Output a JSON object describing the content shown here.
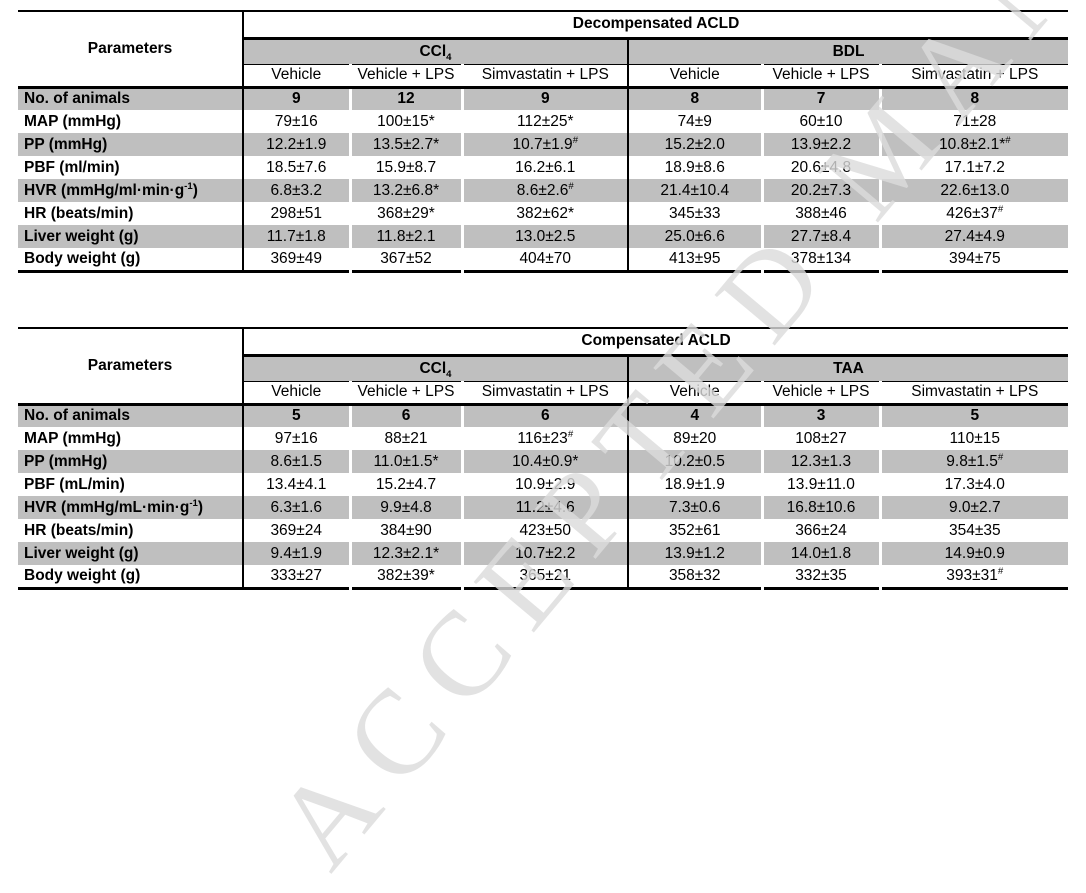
{
  "watermark": "ACCEPTED MANUSCRIPT",
  "colors": {
    "row_shade": "#bfbfbf",
    "border": "#000000",
    "page_background": "#ffffff"
  },
  "tables": [
    {
      "title": "Decompensated ACLD",
      "params_label": "Parameters",
      "groups": [
        {
          "label": [
            "CCl",
            {
              "sub": "4"
            }
          ],
          "columns": [
            "Vehicle",
            "Vehicle + LPS",
            "Simvastatin + LPS"
          ]
        },
        {
          "label": [
            "BDL"
          ],
          "columns": [
            "Vehicle",
            "Vehicle + LPS",
            "Simvastatin + LPS"
          ]
        }
      ],
      "rows": [
        {
          "param": [
            "No. of animals"
          ],
          "bold": true,
          "shaded": true,
          "values": [
            "9",
            "12",
            "9",
            "8",
            "7",
            "8"
          ]
        },
        {
          "param": [
            "MAP (mmHg)"
          ],
          "bold": false,
          "shaded": false,
          "values": [
            "79±16",
            "100±15*",
            "112±25*",
            "74±9",
            "60±10",
            "71±28"
          ]
        },
        {
          "param": [
            "PP (mmHg)"
          ],
          "bold": false,
          "shaded": true,
          "values": [
            "12.2±1.9",
            "13.5±2.7*",
            "10.7±1.9#",
            "15.2±2.0",
            "13.9±2.2",
            "10.8±2.1*#"
          ]
        },
        {
          "param": [
            "PBF (ml/min)"
          ],
          "bold": false,
          "shaded": false,
          "values": [
            "18.5±7.6",
            "15.9±8.7",
            "16.2±6.1",
            "18.9±8.6",
            "20.6±4.8",
            "17.1±7.2"
          ]
        },
        {
          "param": [
            "HVR (mmHg/ml·min·g",
            {
              "sup": "-1"
            },
            ")"
          ],
          "bold": false,
          "shaded": true,
          "values": [
            "6.8±3.2",
            "13.2±6.8*",
            "8.6±2.6#",
            "21.4±10.4",
            "20.2±7.3",
            "22.6±13.0"
          ]
        },
        {
          "param": [
            "HR (beats/min)"
          ],
          "bold": false,
          "shaded": false,
          "values": [
            "298±51",
            "368±29*",
            "382±62*",
            "345±33",
            "388±46",
            "426±37#"
          ]
        },
        {
          "param": [
            "Liver weight (g)"
          ],
          "bold": false,
          "shaded": true,
          "values": [
            "11.7±1.8",
            "11.8±2.1",
            "13.0±2.5",
            "25.0±6.6",
            "27.7±8.4",
            "27.4±4.9"
          ]
        },
        {
          "param": [
            "Body weight (g)"
          ],
          "bold": false,
          "shaded": false,
          "values": [
            "369±49",
            "367±52",
            "404±70",
            "413±95",
            "378±134",
            "394±75"
          ]
        }
      ]
    },
    {
      "title": "Compensated ACLD",
      "params_label": "Parameters",
      "groups": [
        {
          "label": [
            "CCl",
            {
              "sub": "4"
            }
          ],
          "columns": [
            "Vehicle",
            "Vehicle + LPS",
            "Simvastatin + LPS"
          ]
        },
        {
          "label": [
            "TAA"
          ],
          "columns": [
            "Vehicle",
            "Vehicle + LPS",
            "Simvastatin + LPS"
          ]
        }
      ],
      "rows": [
        {
          "param": [
            "No. of animals"
          ],
          "bold": true,
          "shaded": true,
          "values": [
            "5",
            "6",
            "6",
            "4",
            "3",
            "5"
          ]
        },
        {
          "param": [
            "MAP (mmHg)"
          ],
          "bold": false,
          "shaded": false,
          "values": [
            "97±16",
            "88±21",
            "116±23#",
            "89±20",
            "108±27",
            "110±15"
          ]
        },
        {
          "param": [
            "PP (mmHg)"
          ],
          "bold": false,
          "shaded": true,
          "values": [
            "8.6±1.5",
            "11.0±1.5*",
            "10.4±0.9*",
            "10.2±0.5",
            "12.3±1.3",
            "9.8±1.5#"
          ]
        },
        {
          "param": [
            "PBF (mL/min)"
          ],
          "bold": false,
          "shaded": false,
          "values": [
            "13.4±4.1",
            "15.2±4.7",
            "10.9±2.9",
            "18.9±1.9",
            "13.9±11.0",
            "17.3±4.0"
          ]
        },
        {
          "param": [
            "HVR (mmHg/mL·min·g",
            {
              "sup": "-1"
            },
            ")"
          ],
          "bold": false,
          "shaded": true,
          "values": [
            "6.3±1.6",
            "9.9±4.8",
            "11.2±4.6",
            "7.3±0.6",
            "16.8±10.6",
            "9.0±2.7"
          ]
        },
        {
          "param": [
            "HR (beats/min)"
          ],
          "bold": false,
          "shaded": false,
          "values": [
            "369±24",
            "384±90",
            "423±50",
            "352±61",
            "366±24",
            "354±35"
          ]
        },
        {
          "param": [
            "Liver weight (g)"
          ],
          "bold": false,
          "shaded": true,
          "values": [
            "9.4±1.9",
            "12.3±2.1*",
            "10.7±2.2",
            "13.9±1.2",
            "14.0±1.8",
            "14.9±0.9"
          ]
        },
        {
          "param": [
            "Body weight (g)"
          ],
          "bold": false,
          "shaded": false,
          "values": [
            "333±27",
            "382±39*",
            "365±21",
            "358±32",
            "332±35",
            "393±31#"
          ]
        }
      ]
    }
  ]
}
